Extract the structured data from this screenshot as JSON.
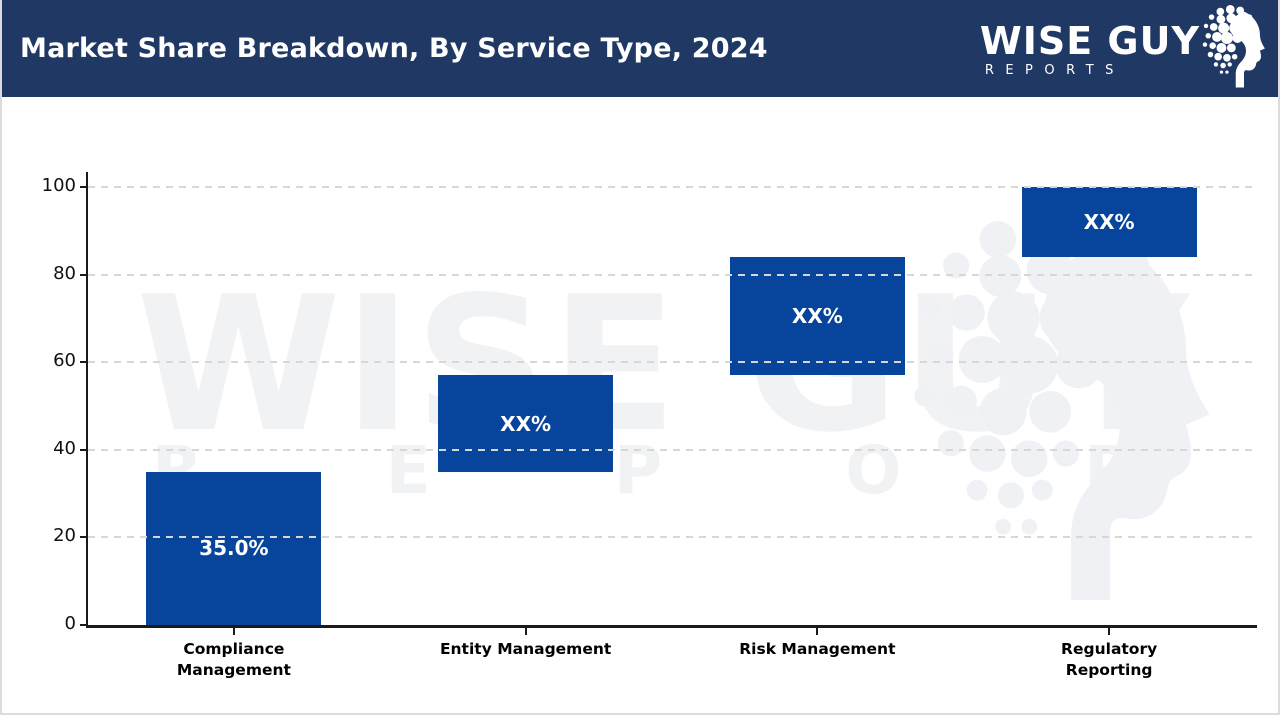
{
  "header": {
    "title": "Market Share Breakdown, By Service Type, 2024",
    "bg_color": "#203864",
    "logo": {
      "line1": "WISE GUY",
      "line2": "REPORTS"
    }
  },
  "watermark": {
    "line1": "WISE GUY",
    "line2": "R E P O R T S"
  },
  "chart_data": {
    "type": "bar",
    "subtype": "waterfall",
    "title": "Market Share Breakdown, By Service Type, 2024",
    "categories": [
      "Compliance Management",
      "Entity Management",
      "Risk Management",
      "Regulatory Reporting"
    ],
    "category_label_lines": [
      [
        "Compliance",
        "Management"
      ],
      [
        "Entity Management"
      ],
      [
        "Risk Management"
      ],
      [
        "Regulatory",
        "Reporting"
      ]
    ],
    "segments": [
      {
        "start": 0,
        "end": 35
      },
      {
        "start": 35,
        "end": 57
      },
      {
        "start": 57,
        "end": 84
      },
      {
        "start": 84,
        "end": 100
      }
    ],
    "bar_labels": [
      "35.0%",
      "XX%",
      "XX%",
      "XX%"
    ],
    "bar_color": "#07449C",
    "label_color": "#ffffff",
    "xlabel": "",
    "ylabel": "",
    "ylim": [
      0,
      100
    ],
    "yticks": [
      0,
      20,
      40,
      60,
      80,
      100
    ],
    "grid": "horizontal dashed",
    "gridline_color": "#d9d9d9",
    "legend": "none"
  }
}
